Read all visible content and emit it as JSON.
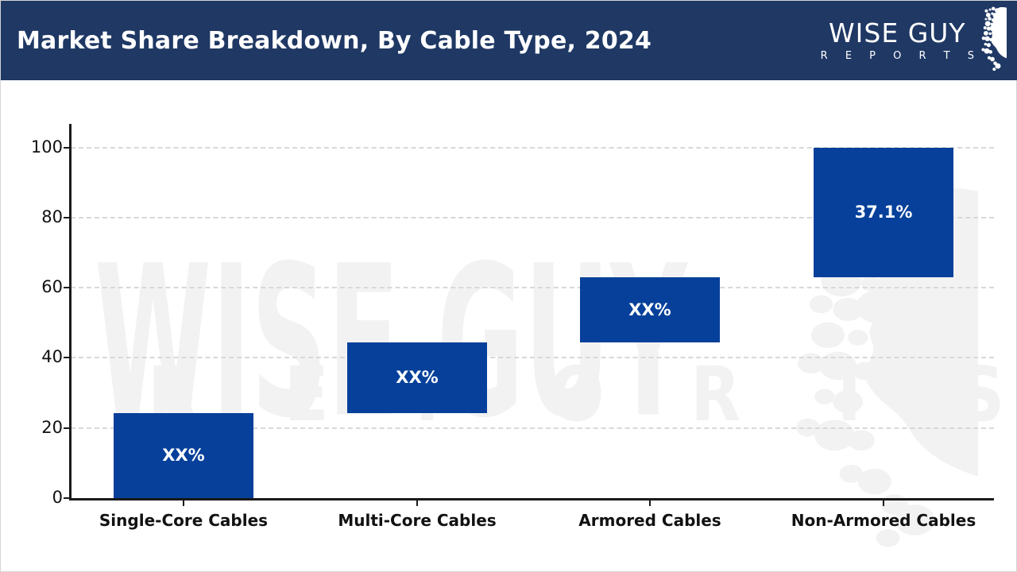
{
  "header": {
    "title": "Market Share Breakdown, By Cable Type, 2024",
    "bg_color": "#1f3864",
    "brand": {
      "line1": "WISE GUY",
      "line2": "REPORTS",
      "line2_display": "R E P O R T S"
    }
  },
  "watermark": {
    "line1": "WISE GUY",
    "line2": "R E P O R T S"
  },
  "chart_data": {
    "type": "bar",
    "subtype": "floating-waterfall",
    "title": "Market Share Breakdown, By Cable Type, 2024",
    "categories": [
      "Single-Core Cables",
      "Multi-Core Cables",
      "Armored Cables",
      "Non-Armored Cables"
    ],
    "series": [
      {
        "name": "Market Share",
        "bar_ranges_estimated": [
          [
            0,
            24.3
          ],
          [
            24.3,
            44.5
          ],
          [
            44.5,
            62.9
          ],
          [
            62.9,
            100
          ]
        ],
        "segment_values_estimated": [
          24.3,
          20.2,
          18.4,
          37.1
        ],
        "data_labels": [
          "XX%",
          "XX%",
          "XX%",
          "37.1%"
        ]
      }
    ],
    "xlabel": "",
    "ylabel": "",
    "ylim": [
      0,
      100
    ],
    "yticks": [
      0,
      20,
      40,
      60,
      80,
      100
    ],
    "grid": "horizontal dashed",
    "legend": "none",
    "bar_color": "#06409a",
    "data_label_color": "#ffffff",
    "axis_color": "#1a1a1a"
  }
}
